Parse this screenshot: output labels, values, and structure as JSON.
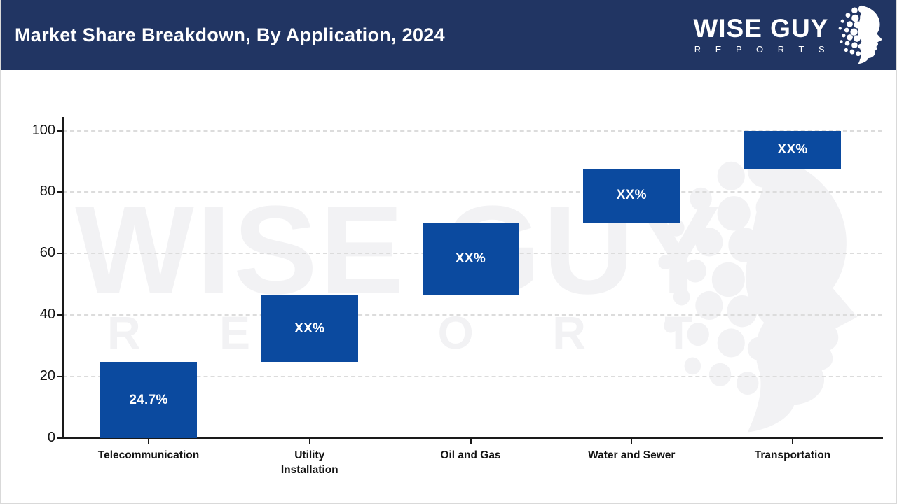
{
  "header": {
    "title": "Market Share Breakdown, By Application, 2024",
    "logo": {
      "line1": "WISE GUY",
      "line2": "R E P O R T S"
    }
  },
  "watermark": {
    "line1": "WISE GUY",
    "line2": "R E P O R T S"
  },
  "colors": {
    "header_bg": "#213563",
    "bar": "#0b4a9f",
    "bar_label": "#ffffff",
    "watermark": "#f2f2f4",
    "axis": "#1a1a1a",
    "grid": "#dcdcdc"
  },
  "chart_data": {
    "type": "bar",
    "subtype": "waterfall",
    "title": "Market Share Breakdown, By Application, 2024",
    "categories": [
      "Telecommunication",
      "Utility Installation",
      "Oil and Gas",
      "Water and Sewer",
      "Transportation"
    ],
    "segments": [
      {
        "category": "Telecommunication",
        "category_lines": [
          "Telecommunication"
        ],
        "start": 0,
        "end": 24.7,
        "value": 24.7,
        "label": "24.7%"
      },
      {
        "category": "Utility Installation",
        "category_lines": [
          "Utility",
          "Installation"
        ],
        "start": 24.7,
        "end": 46.4,
        "value": 21.7,
        "label": "XX%"
      },
      {
        "category": "Oil and Gas",
        "category_lines": [
          "Oil and Gas"
        ],
        "start": 46.4,
        "end": 70.0,
        "value": 23.6,
        "label": "XX%"
      },
      {
        "category": "Water and Sewer",
        "category_lines": [
          "Water and Sewer"
        ],
        "start": 70.0,
        "end": 87.7,
        "value": 17.7,
        "label": "XX%"
      },
      {
        "category": "Transportation",
        "category_lines": [
          "Transportation"
        ],
        "start": 87.7,
        "end": 100.0,
        "value": 12.3,
        "label": "XX%"
      }
    ],
    "y_ticks": [
      0,
      20,
      40,
      60,
      80,
      100
    ],
    "ylim": [
      0,
      104
    ],
    "grid": "horizontal-dashed",
    "legend": "none",
    "xlabel": "",
    "ylabel": ""
  }
}
